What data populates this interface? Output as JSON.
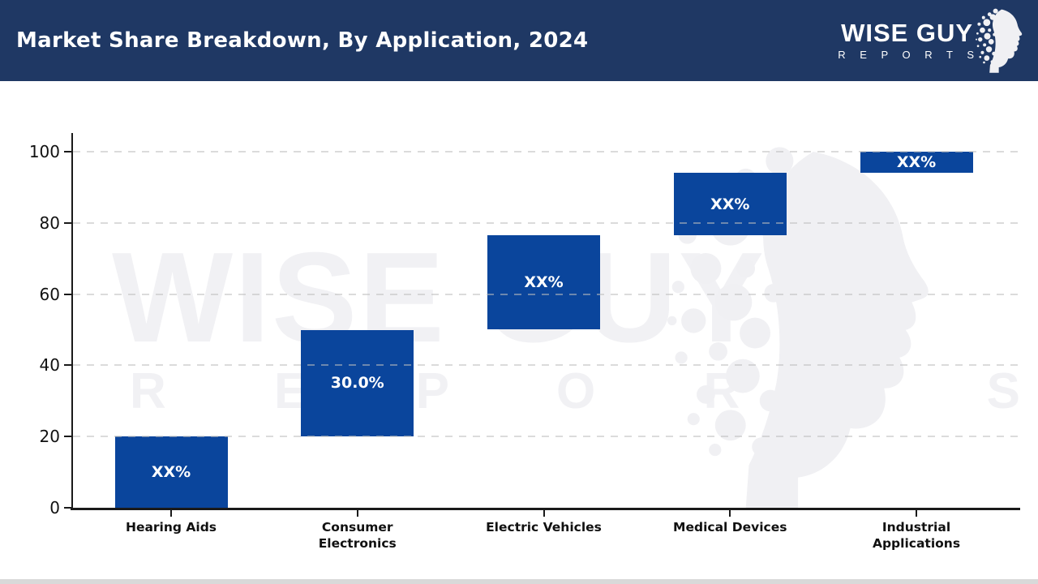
{
  "header": {
    "title": "Market Share Breakdown, By Application, 2024",
    "logo": {
      "name_line": "WISE GUY",
      "reports_line": "R E P O R T S"
    }
  },
  "watermark": {
    "name_line": "WISE GUY",
    "reports_line": "R E P O R T S"
  },
  "colors": {
    "header_bg": "#1F3864",
    "bar_fill": "#0A459C",
    "bar_label_text": "#FFFFFF",
    "axis_text": "#111111",
    "gridline": "rgba(190,190,190,0.55)",
    "watermark_text": "#F1F1F4",
    "watermark_head": "#F0F0F3",
    "bottom_strip": "#D9D9D9"
  },
  "chart_data": {
    "type": "bar",
    "subtype": "waterfall-stacked-percentage",
    "title": "Market Share Breakdown, By Application, 2024",
    "categories": [
      "Hearing Aids",
      "Consumer Electronics",
      "Electric Vehicles",
      "Medical Devices",
      "Industrial Applications"
    ],
    "tick_labels": [
      "Hearing Aids",
      "Consumer\nElectronics",
      "Electric Vehicles",
      "Medical Devices",
      "Industrial\nApplications"
    ],
    "bars": [
      {
        "category": "Hearing Aids",
        "start": 0,
        "end": 20,
        "label": "XX%"
      },
      {
        "category": "Consumer Electronics",
        "start": 20,
        "end": 50,
        "label": "30.0%"
      },
      {
        "category": "Electric Vehicles",
        "start": 50,
        "end": 76.5,
        "label": "XX%"
      },
      {
        "category": "Medical Devices",
        "start": 76.5,
        "end": 94,
        "label": "XX%"
      },
      {
        "category": "Industrial Applications",
        "start": 94,
        "end": 100,
        "label": "XX%"
      }
    ],
    "yticks": [
      0,
      20,
      40,
      60,
      80,
      100
    ],
    "ylim": [
      0,
      100
    ],
    "xlabel": "",
    "ylabel": "",
    "grid": "horizontal-dashed",
    "legend": "none"
  }
}
